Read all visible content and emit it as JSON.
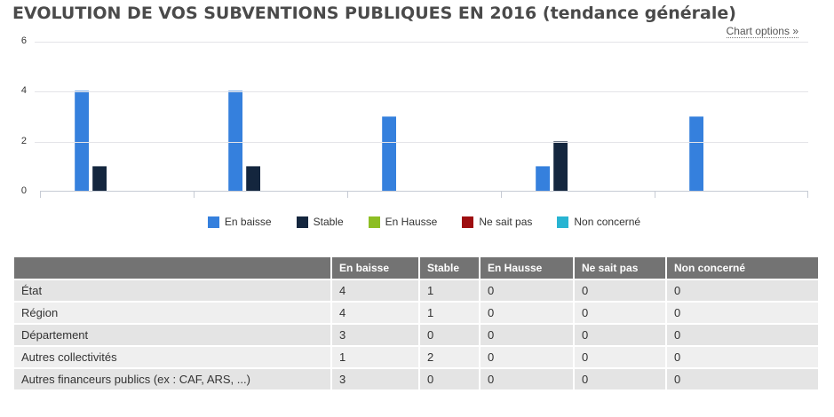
{
  "header": {
    "title": "EVOLUTION DE VOS SUBVENTIONS PUBLIQUES EN 2016 (tendance générale)",
    "chart_options_label": "Chart options »"
  },
  "chart_data": {
    "type": "bar",
    "title": "EVOLUTION DE VOS SUBVENTIONS PUBLIQUES EN 2016 (tendance générale)",
    "categories": [
      "État",
      "Région",
      "Département",
      "Autres collectivités",
      "Autres financeurs publics (ex : CAF, ARS, ...)"
    ],
    "series": [
      {
        "name": "En baisse",
        "color": "#3580dd",
        "values": [
          4,
          4,
          3,
          1,
          3
        ]
      },
      {
        "name": "Stable",
        "color": "#14263e",
        "values": [
          1,
          1,
          0,
          2,
          0
        ]
      },
      {
        "name": "En Hausse",
        "color": "#8dbe23",
        "values": [
          0,
          0,
          0,
          0,
          0
        ]
      },
      {
        "name": "Ne sait pas",
        "color": "#9e0e10",
        "values": [
          0,
          0,
          0,
          0,
          0
        ]
      },
      {
        "name": "Non concerné",
        "color": "#28b4d2",
        "values": [
          0,
          0,
          0,
          0,
          0
        ]
      }
    ],
    "xlabel": "",
    "ylabel": "",
    "ylim": [
      0,
      6
    ],
    "yticks": [
      0,
      2,
      4,
      6
    ],
    "grid": true,
    "legend_position": "bottom",
    "x_axis_category_labels_shown": false
  },
  "table": {
    "columns": [
      "",
      "En baisse",
      "Stable",
      "En Hausse",
      "Ne sait pas",
      "Non concerné"
    ],
    "rows": [
      {
        "label": "État",
        "values": [
          4,
          1,
          0,
          0,
          0
        ]
      },
      {
        "label": "Région",
        "values": [
          4,
          1,
          0,
          0,
          0
        ]
      },
      {
        "label": "Département",
        "values": [
          3,
          0,
          0,
          0,
          0
        ]
      },
      {
        "label": "Autres collectivités",
        "values": [
          1,
          2,
          0,
          0,
          0
        ]
      },
      {
        "label": "Autres financeurs publics (ex : CAF, ARS, ...)",
        "values": [
          3,
          0,
          0,
          0,
          0
        ]
      }
    ]
  }
}
